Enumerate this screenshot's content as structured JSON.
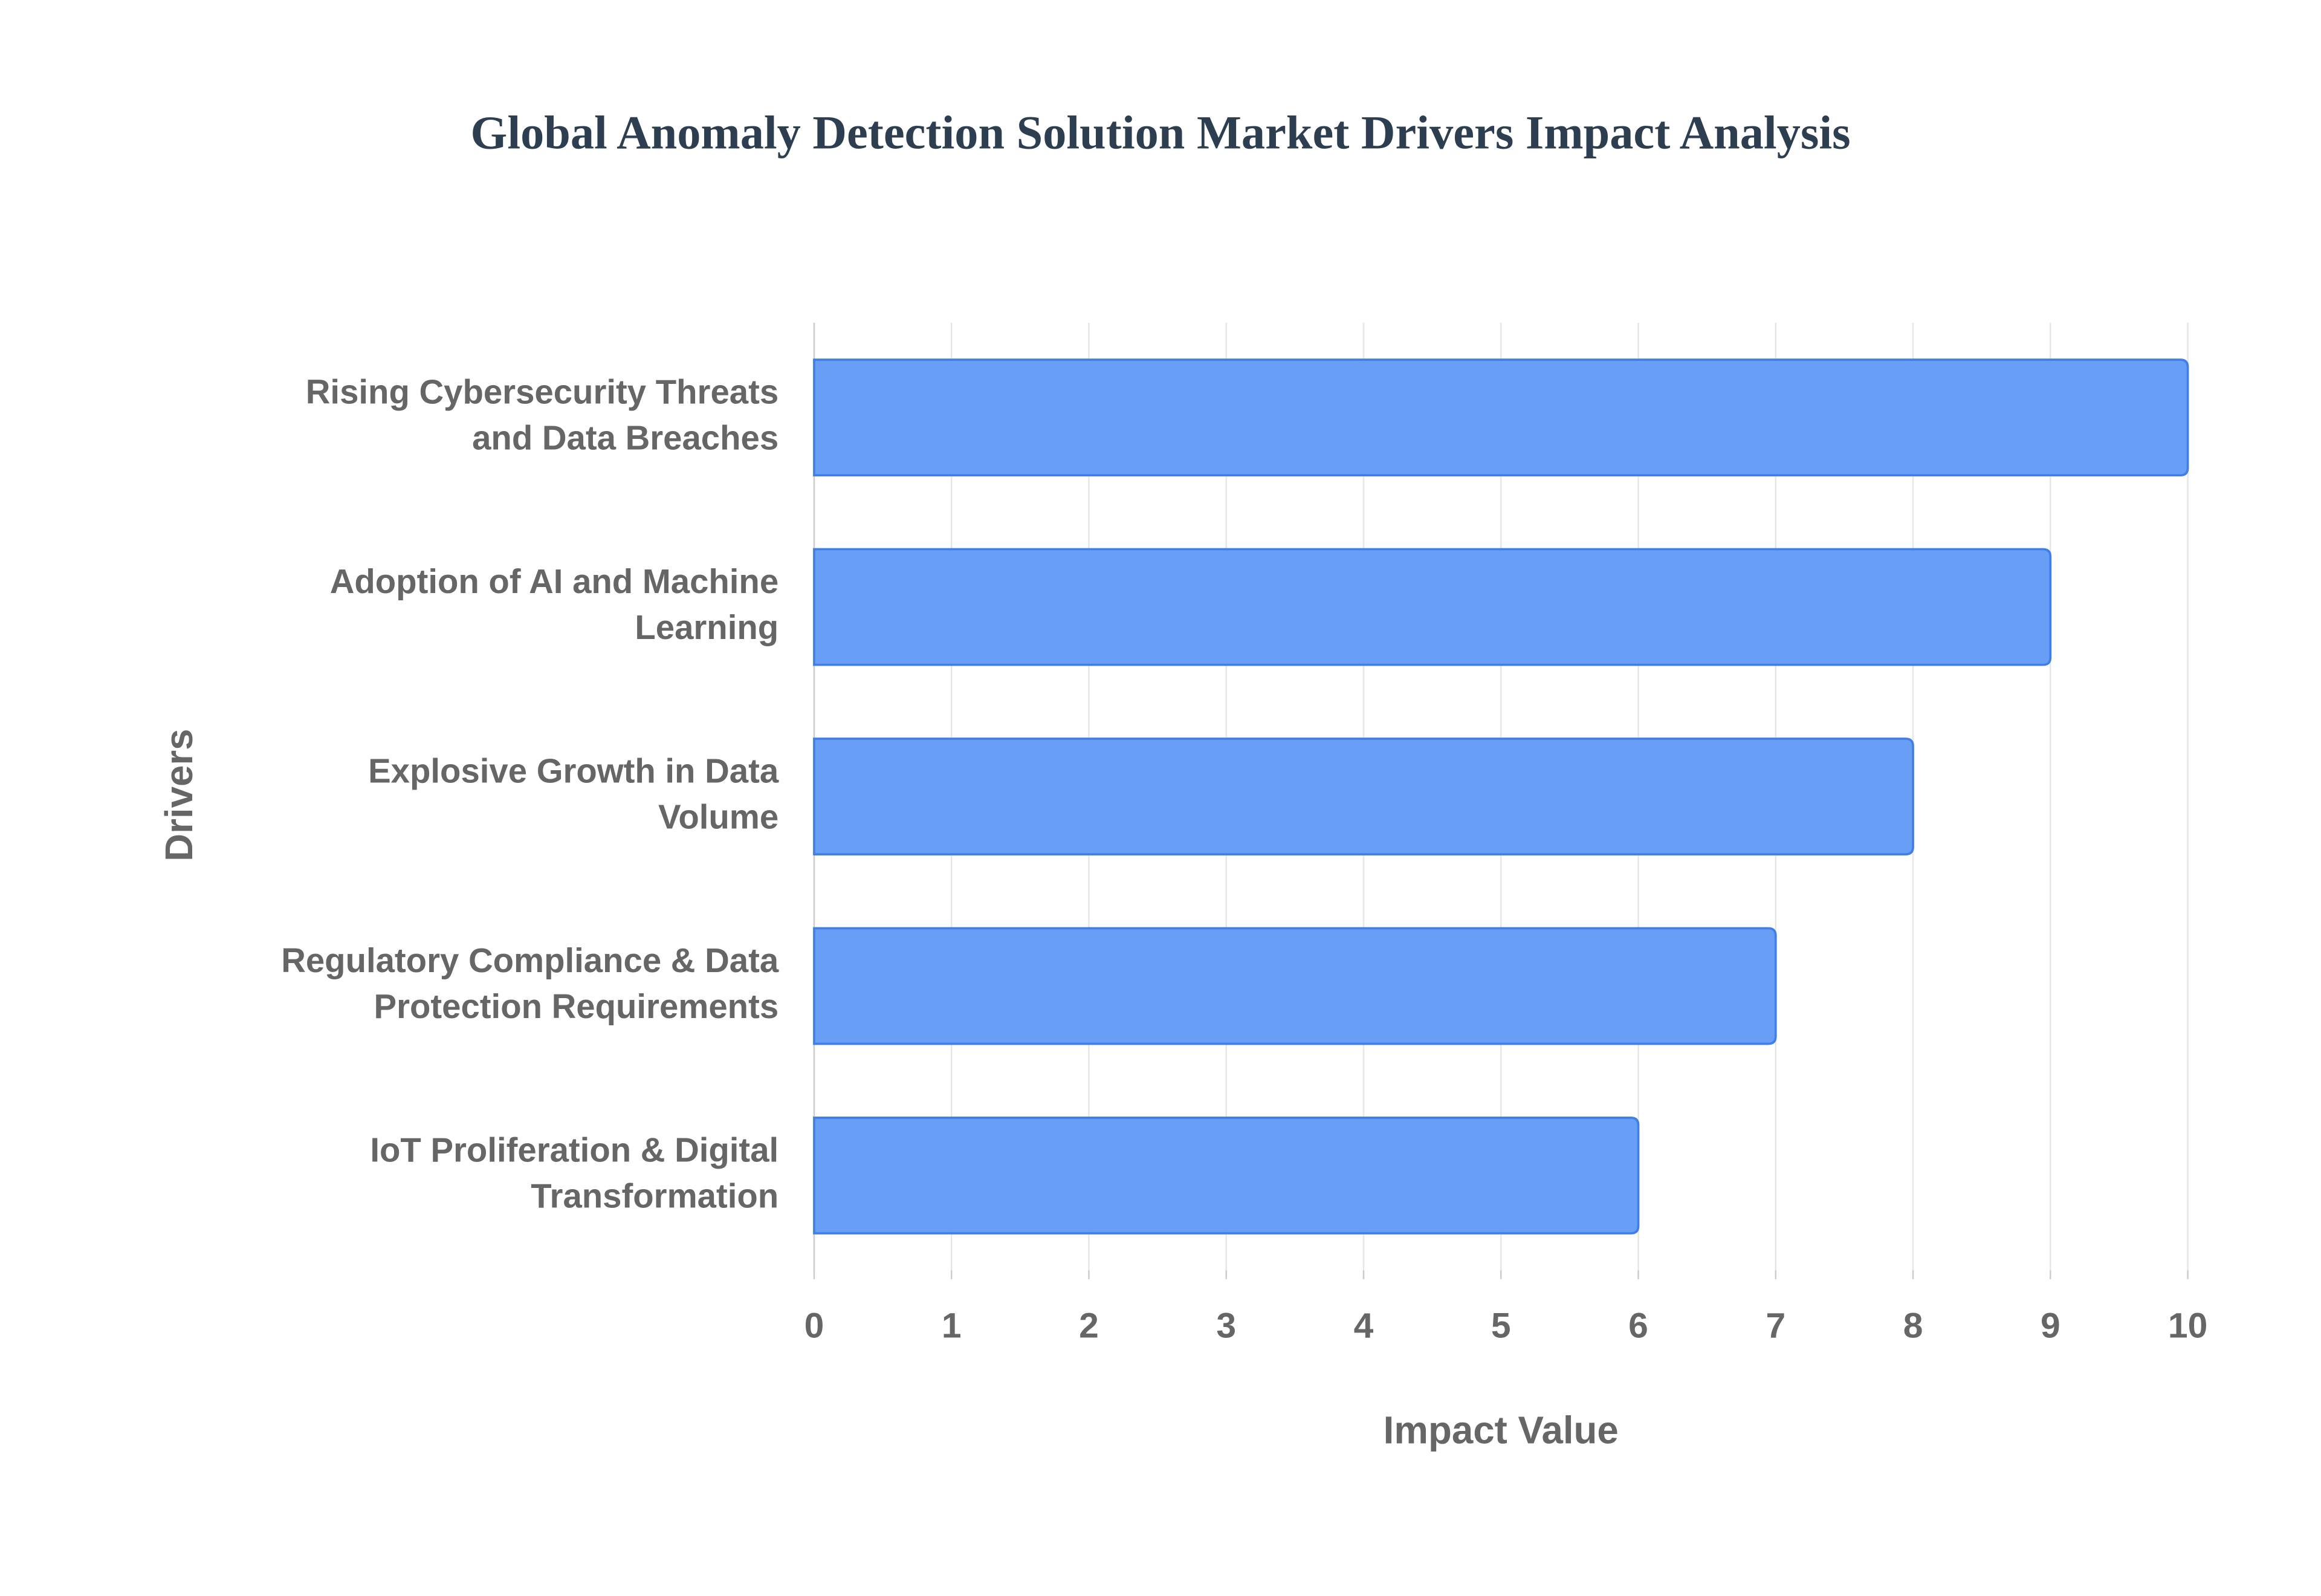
{
  "chart_data": {
    "type": "bar",
    "orientation": "horizontal",
    "title": "Global Anomaly Detection Solution Market Drivers Impact Analysis",
    "x_label": "Impact Value",
    "y_label": "Drivers",
    "categories": [
      "Rising Cybersecurity Threats and Data Breaches",
      "Adoption of AI and Machine Learning",
      "Explosive Growth in Data Volume",
      "Regulatory Compliance & Data Protection Requirements",
      "IoT Proliferation & Digital Transformation"
    ],
    "values": [
      10,
      9,
      8,
      7,
      6
    ],
    "color": "#6199f5",
    "edge_color": "#3f7fe6",
    "xlim": [
      0,
      10
    ],
    "xticks": [
      0,
      1,
      2,
      3,
      4,
      5,
      6,
      7,
      8,
      9,
      10
    ],
    "grid": true
  }
}
